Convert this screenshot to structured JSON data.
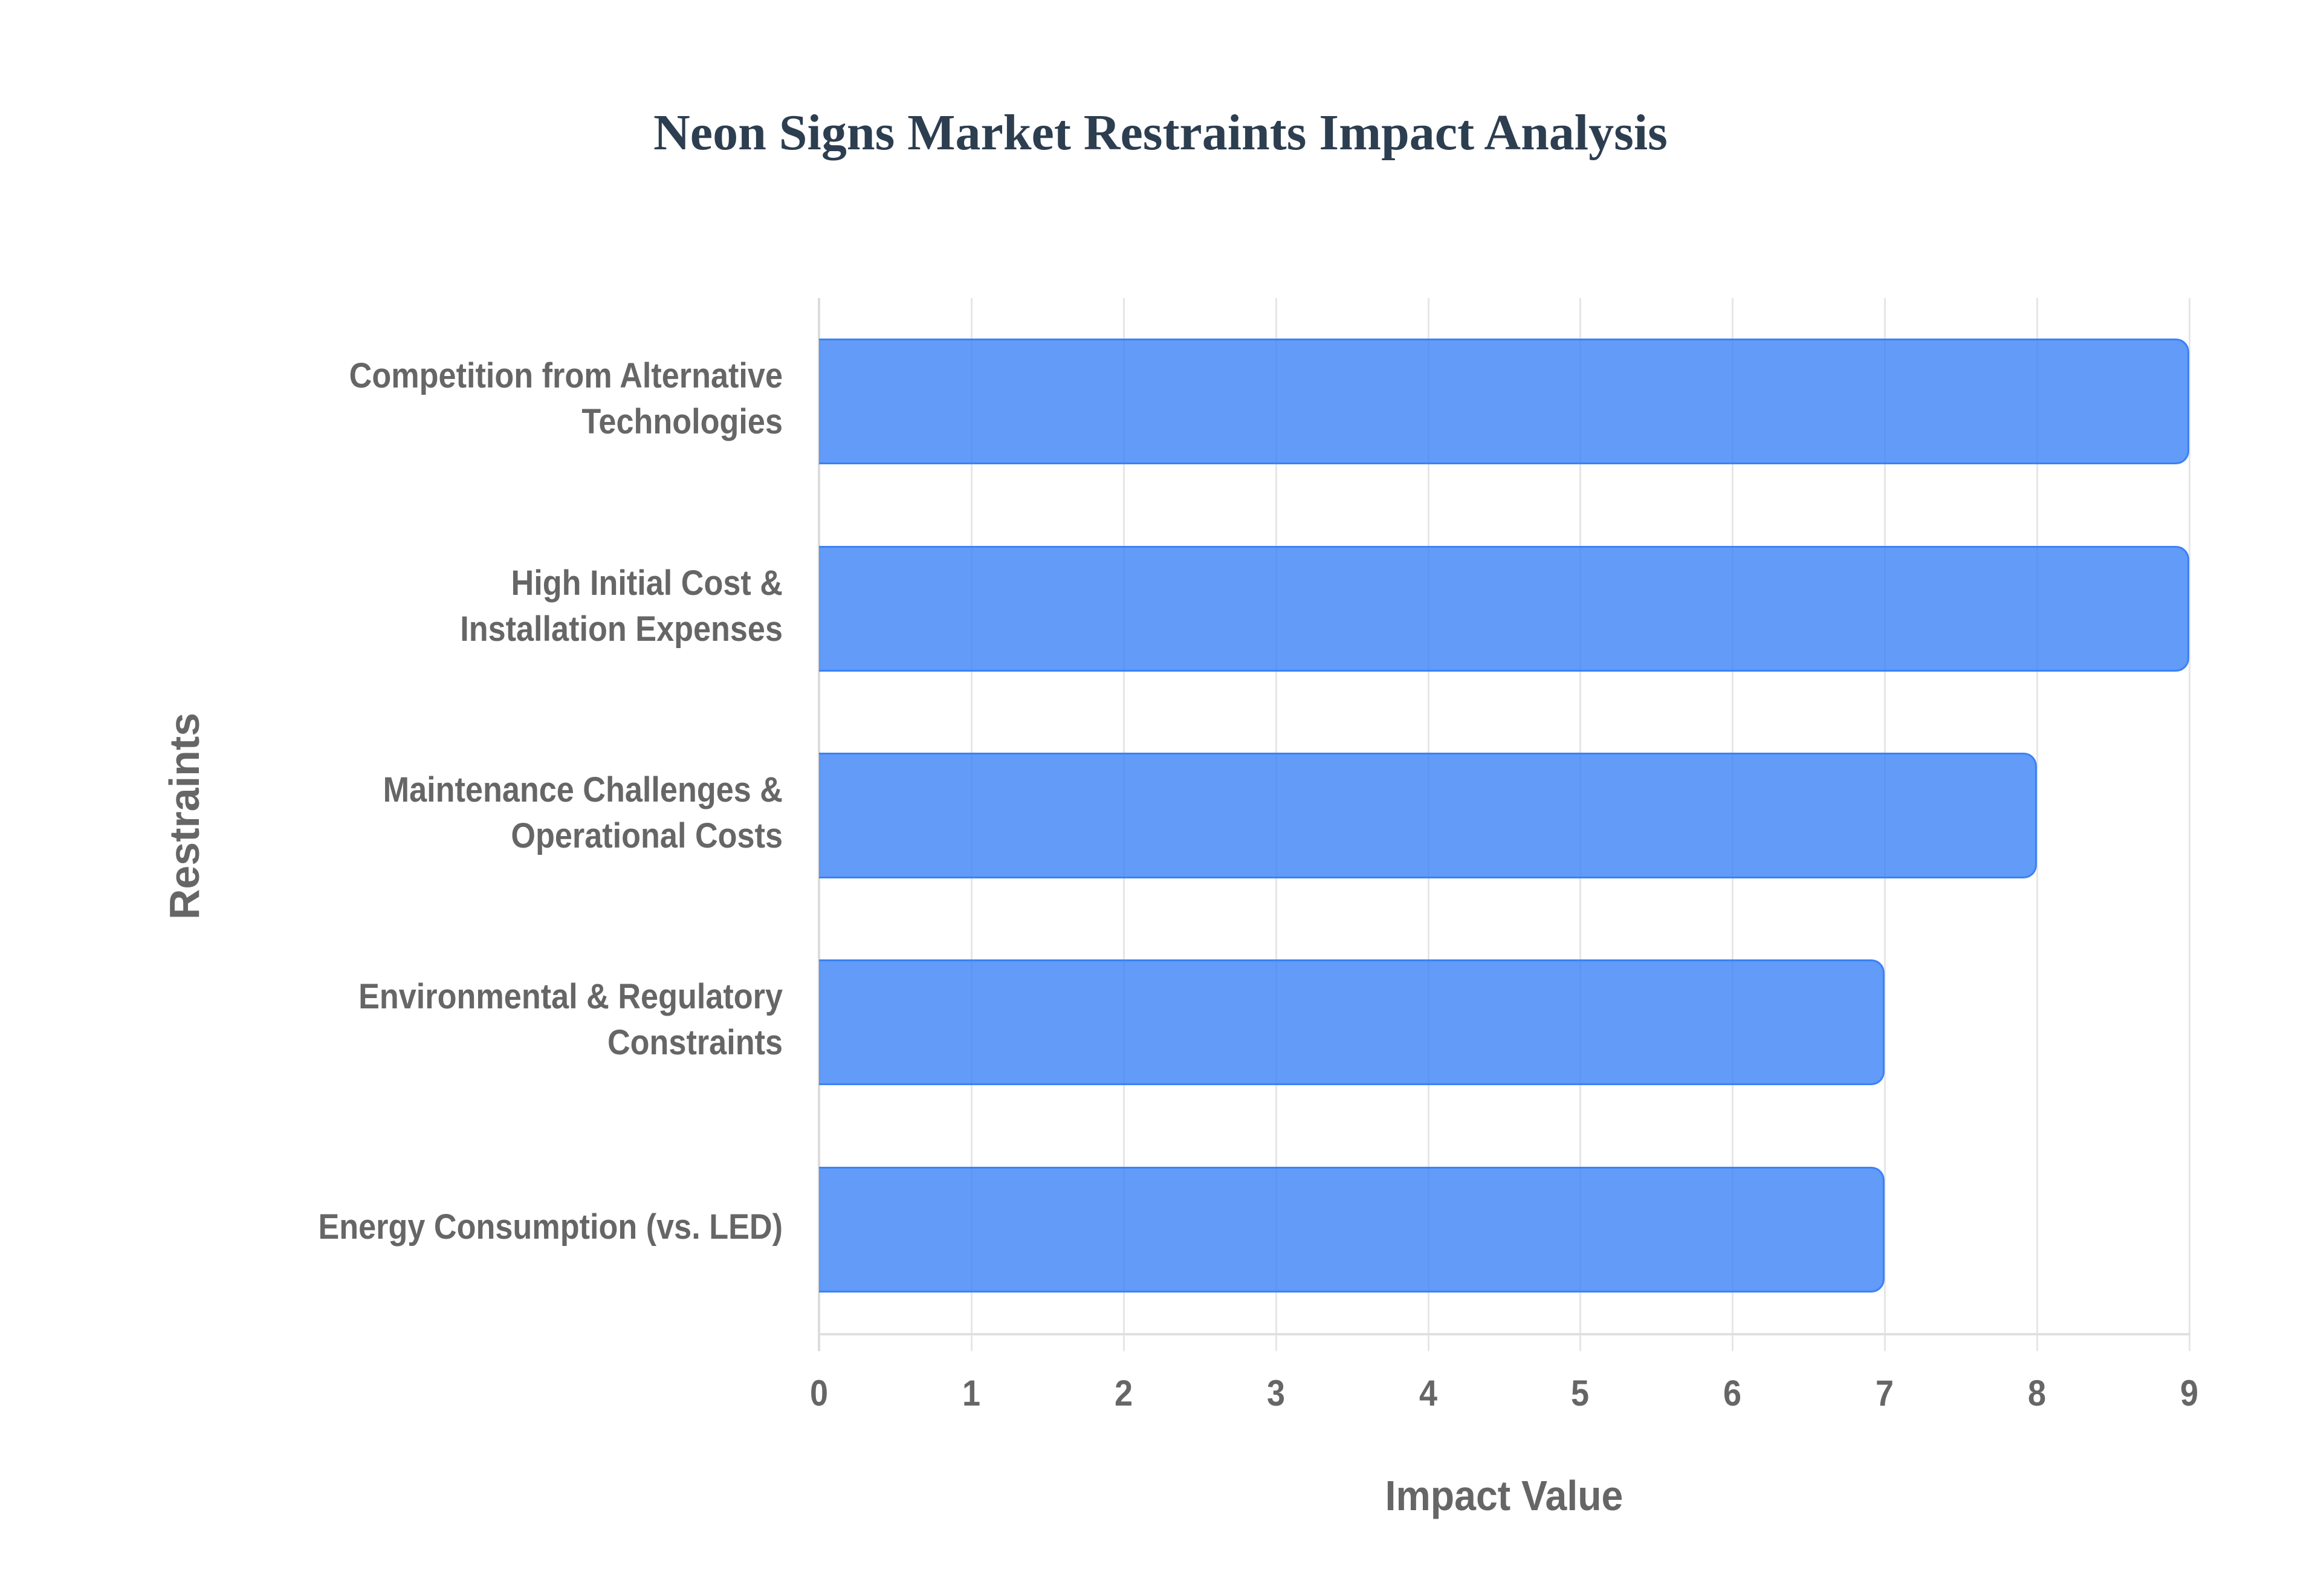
{
  "title": "Neon Signs Market Restraints Impact Analysis",
  "axes": {
    "x_title": "Impact Value",
    "y_title": "Restraints",
    "x_ticks": [
      "0",
      "1",
      "2",
      "3",
      "4",
      "5",
      "6",
      "7",
      "8",
      "9"
    ]
  },
  "colors": {
    "bar_fill": "#3b82f6cc",
    "bar_border": "#3b82f6",
    "title": "#2c3e50",
    "labels": "#666666",
    "grid": "#e6e6e6"
  },
  "categories": [
    {
      "label": "Competition from Alternative\nTechnologies",
      "value": 9
    },
    {
      "label": "High Initial Cost &\nInstallation Expenses",
      "value": 9
    },
    {
      "label": "Maintenance Challenges &\nOperational Costs",
      "value": 8
    },
    {
      "label": "Environmental & Regulatory\nConstraints",
      "value": 7
    },
    {
      "label": "Energy Consumption (vs. LED)",
      "value": 7
    }
  ],
  "chart_data": {
    "type": "bar",
    "orientation": "horizontal",
    "title": "Neon Signs Market Restraints Impact Analysis",
    "categories": [
      "Competition from Alternative Technologies",
      "High Initial Cost & Installation Expenses",
      "Maintenance Challenges & Operational Costs",
      "Environmental & Regulatory Constraints",
      "Energy Consumption (vs. LED)"
    ],
    "values": [
      9,
      9,
      8,
      7,
      7
    ],
    "xlabel": "Impact Value",
    "ylabel": "Restraints",
    "xlim": [
      0,
      9
    ],
    "x_ticks": [
      0,
      1,
      2,
      3,
      4,
      5,
      6,
      7,
      8,
      9
    ],
    "grid": {
      "vertical": true,
      "horizontal": false
    },
    "legend": null
  }
}
